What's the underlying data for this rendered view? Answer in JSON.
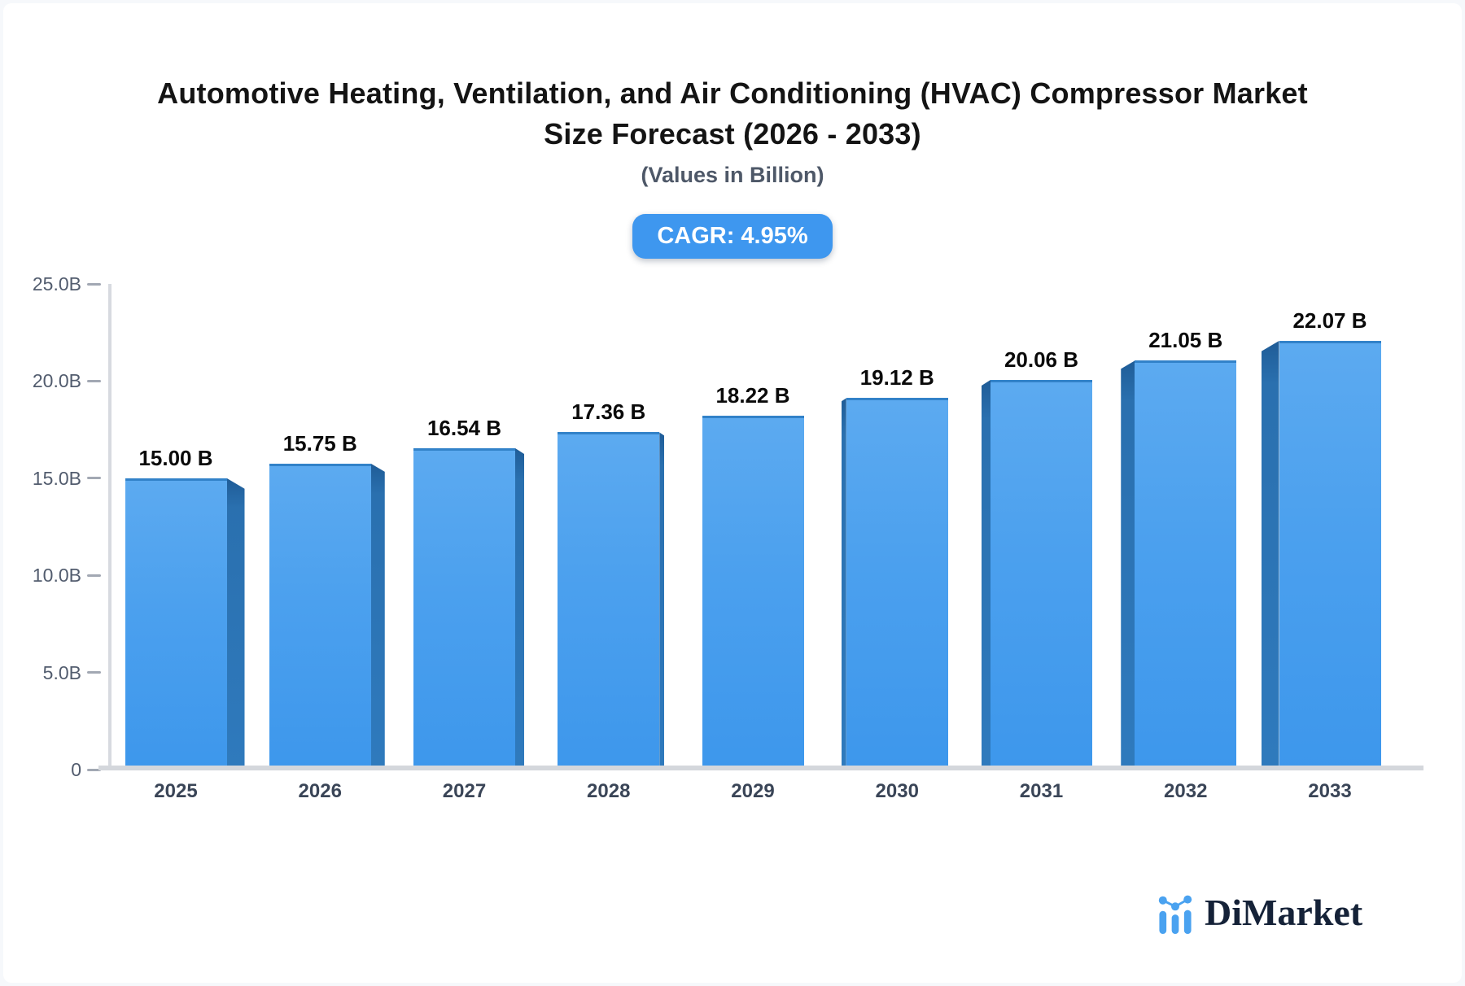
{
  "header": {
    "title_line1": "Automotive Heating, Ventilation, and Air Conditioning (HVAC) Compressor Market",
    "title_line2": "Size Forecast (2026 - 2033)",
    "subtitle": "(Values in Billion)",
    "cagr_badge": "CAGR: 4.95%"
  },
  "brand": {
    "name": "DiMarket",
    "icon": "mini-bar-chart-logo-icon"
  },
  "chart_data": {
    "type": "bar",
    "title": "Automotive Heating, Ventilation, and Air Conditioning (HVAC) Compressor Market Size Forecast (2026 - 2033)",
    "subtitle": "(Values in Billion)",
    "cagr_pct": 4.95,
    "unit": "Billion",
    "categories": [
      "2025",
      "2026",
      "2027",
      "2028",
      "2029",
      "2030",
      "2031",
      "2032",
      "2033"
    ],
    "values": [
      15.0,
      15.75,
      16.54,
      17.36,
      18.22,
      19.12,
      20.06,
      21.05,
      22.07
    ],
    "value_labels": [
      "15.00 B",
      "15.75 B",
      "16.54 B",
      "17.36 B",
      "18.22 B",
      "19.12 B",
      "20.06 B",
      "21.05 B",
      "22.07 B"
    ],
    "xlabel": "",
    "ylabel": "",
    "ylim": [
      0,
      25
    ],
    "ytick_values": [
      0,
      5,
      10,
      15,
      20,
      25
    ],
    "ytick_labels": [
      "0",
      "5.0B",
      "10.0B",
      "15.0B",
      "20.0B",
      "25.0B"
    ],
    "grid": false,
    "legend": null,
    "style_3d": true,
    "colors": {
      "bar_front": "#4aa0ee",
      "bar_side": "#2b72b2",
      "bar_top_edge": "#3282c9",
      "axis": "#d6d9de",
      "badge_bg": "#3e97ef",
      "badge_text": "#ffffff",
      "value_text": "#0a0a0a",
      "tick_text": "#525c6e",
      "category_text": "#3a4557",
      "brand_text": "#152238",
      "brand_icon": "#4aa2f0"
    }
  }
}
